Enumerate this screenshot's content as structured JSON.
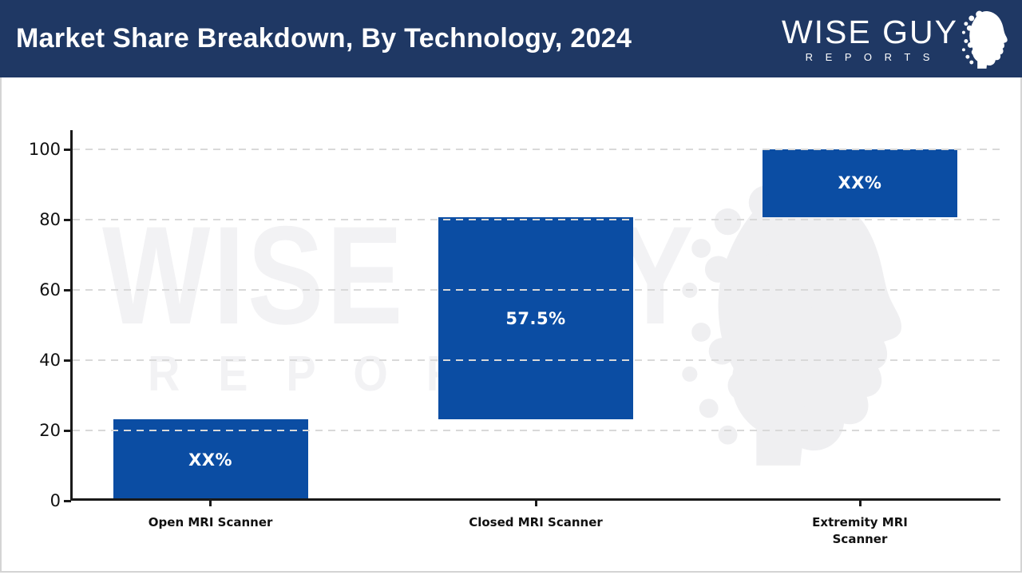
{
  "header": {
    "title": "Market Share Breakdown, By Technology, 2024",
    "brand": {
      "name": "WISE GUY",
      "tagline": "R E P O R T S"
    },
    "bg_color": "#1F3864"
  },
  "watermark": {
    "line1": "WISE GUY",
    "line2": "R E P O R T S"
  },
  "chart_data": {
    "type": "bar",
    "variant": "waterfall",
    "title": "Market Share Breakdown, By Technology, 2024",
    "categories": [
      "Open MRI Scanner",
      "Closed MRI Scanner",
      "Extremity MRI Scanner"
    ],
    "category_lines": [
      [
        "Open MRI Scanner"
      ],
      [
        "Closed MRI Scanner"
      ],
      [
        "Extremity MRI",
        "Scanner"
      ]
    ],
    "segments": [
      {
        "category": "Open MRI Scanner",
        "start": 0,
        "end": 23,
        "label": "XX%"
      },
      {
        "category": "Closed MRI Scanner",
        "start": 23,
        "end": 80.5,
        "label": "57.5%"
      },
      {
        "category": "Extremity MRI Scanner",
        "start": 80.5,
        "end": 100,
        "label": "XX%"
      }
    ],
    "values_displayed": [
      "XX%",
      "57.5%",
      "XX%"
    ],
    "yticks": [
      0,
      20,
      40,
      60,
      80,
      100
    ],
    "ylim": [
      0,
      100
    ],
    "xlabel": "",
    "ylabel": "",
    "legend": "none",
    "grid": "horizontal-dashed",
    "bar_color": "#0B4DA3",
    "label_color": "#FFFFFF",
    "axis_color": "#1A1A1A",
    "gridline_color": "#D9D9D9"
  }
}
